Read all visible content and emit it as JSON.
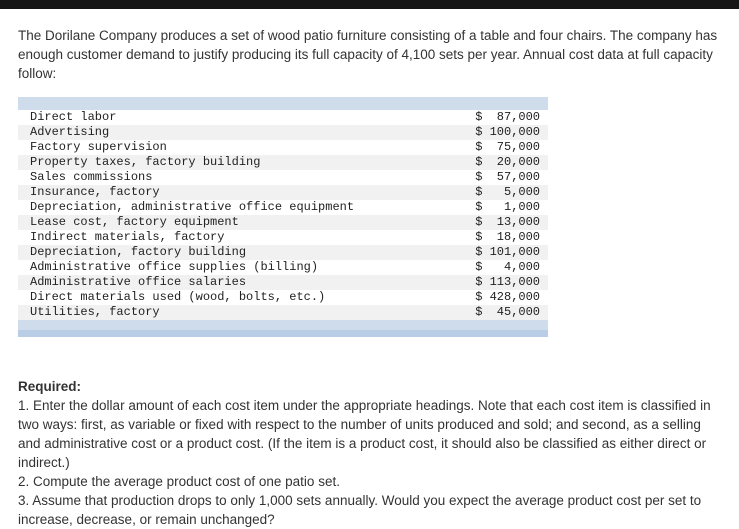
{
  "intro": "The Dorilane Company produces a set of wood patio furniture consisting of a table and four chairs. The company has enough customer demand to justify producing its full capacity of 4,100 sets per year. Annual cost data at full capacity follow:",
  "cost_table": {
    "rows": [
      {
        "label": "Direct labor",
        "amount": "$  87,000"
      },
      {
        "label": "Advertising",
        "amount": "$ 100,000"
      },
      {
        "label": "Factory supervision",
        "amount": "$  75,000"
      },
      {
        "label": "Property taxes, factory building",
        "amount": "$  20,000"
      },
      {
        "label": "Sales commissions",
        "amount": "$  57,000"
      },
      {
        "label": "Insurance, factory",
        "amount": "$   5,000"
      },
      {
        "label": "Depreciation, administrative office equipment",
        "amount": "$   1,000"
      },
      {
        "label": "Lease cost, factory equipment",
        "amount": "$  13,000"
      },
      {
        "label": "Indirect materials, factory",
        "amount": "$  18,000"
      },
      {
        "label": "Depreciation, factory building",
        "amount": "$ 101,000"
      },
      {
        "label": "Administrative office supplies (billing)",
        "amount": "$   4,000"
      },
      {
        "label": "Administrative office salaries",
        "amount": "$ 113,000"
      },
      {
        "label": "Direct materials used (wood, bolts, etc.)",
        "amount": "$ 428,000"
      },
      {
        "label": "Utilities, factory",
        "amount": "$  45,000"
      }
    ]
  },
  "required": {
    "heading": "Required:",
    "items": [
      "1. Enter the dollar amount of each cost item under the appropriate headings. Note that each cost item is classified in two ways: first, as variable or fixed with respect to the number of units produced and sold; and second, as a selling and administrative cost or a product cost. (If the item is a product cost, it should also be classified as either direct or indirect.)",
      "2. Compute the average product cost of one patio set.",
      "3. Assume that production drops to only 1,000 sets annually. Would you expect the average product cost per set to increase, decrease, or remain unchanged?"
    ]
  },
  "colors": {
    "top_bar": "#161616",
    "table_band": "#cfdcec",
    "table_band_dark": "#b9cde6",
    "row_alt": "#f1f1f1"
  }
}
